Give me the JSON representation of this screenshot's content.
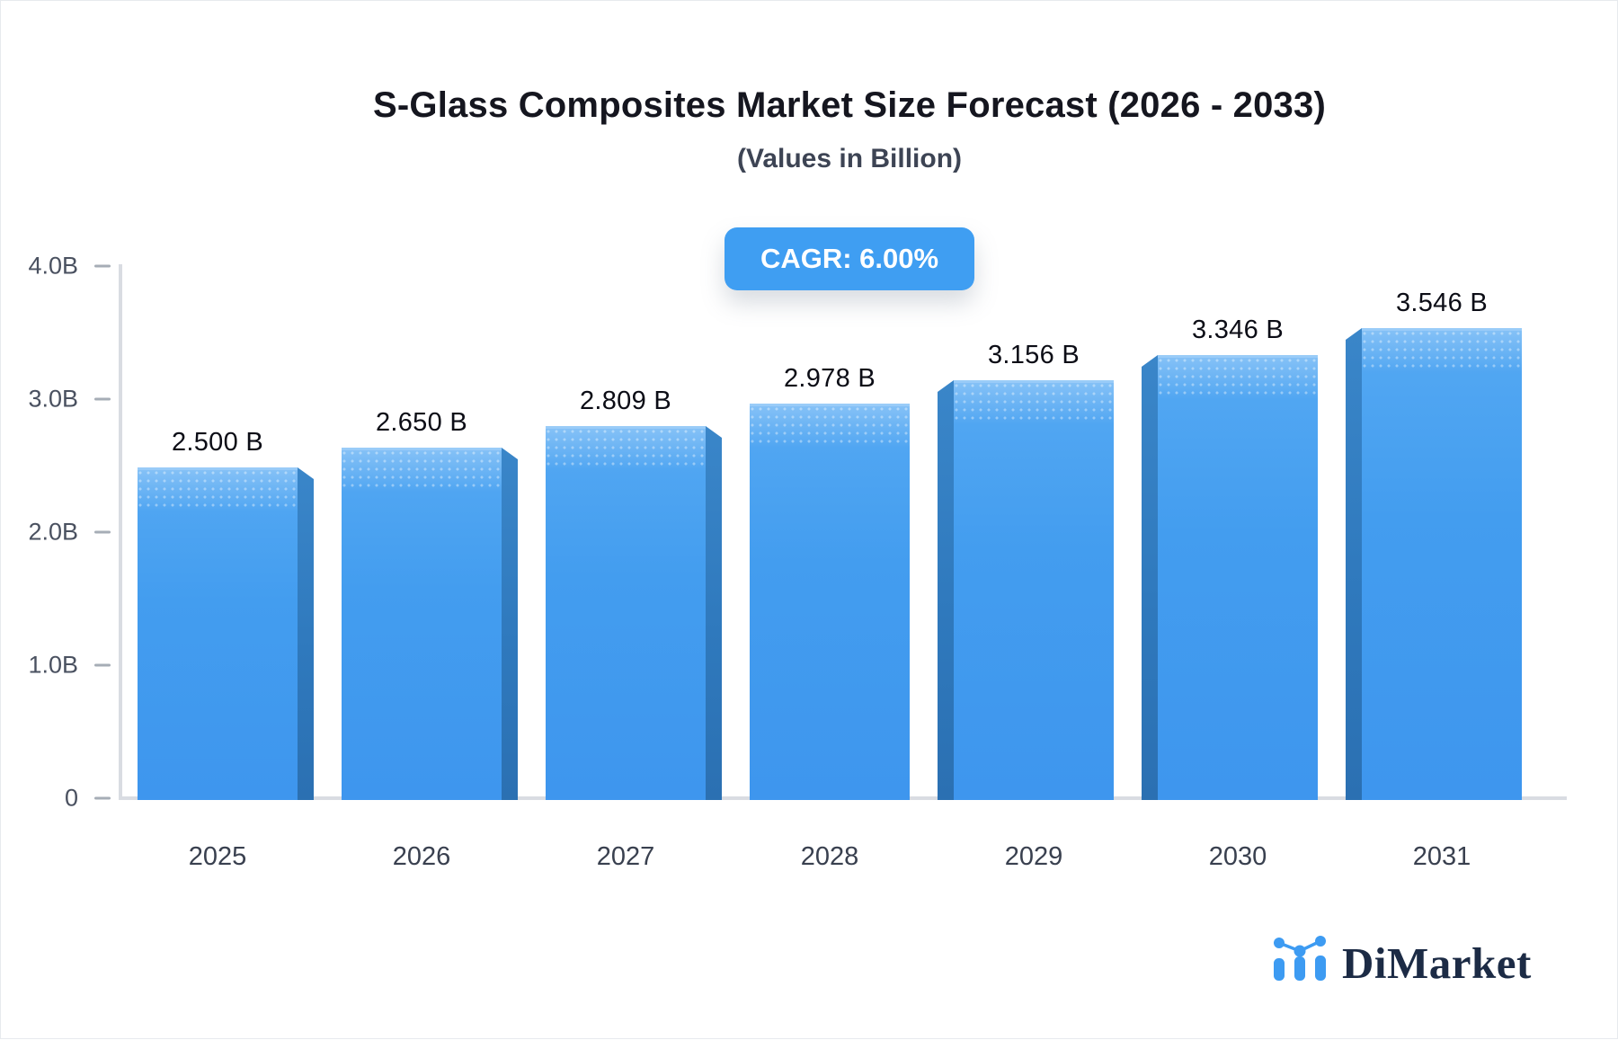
{
  "title": "S-Glass Composites Market Size Forecast (2026 - 2033)",
  "subtitle": "(Values in Billion)",
  "badge": {
    "label": "CAGR: 6.00%"
  },
  "chart_data": {
    "type": "bar",
    "title": "S-Glass Composites Market Size Forecast (2026 - 2033)",
    "subtitle": "(Values in Billion)",
    "annotation": "CAGR: 6.00%",
    "categories": [
      "2025",
      "2026",
      "2027",
      "2028",
      "2029",
      "2030",
      "2031"
    ],
    "values": [
      2.5,
      2.65,
      2.809,
      2.978,
      3.156,
      3.346,
      3.546
    ],
    "value_labels": [
      "2.500 B",
      "2.650 B",
      "2.809 B",
      "2.978 B",
      "3.156 B",
      "3.346 B",
      "3.546 B"
    ],
    "y_ticks": [
      {
        "value": 0,
        "label": "0"
      },
      {
        "value": 1,
        "label": "1.0B"
      },
      {
        "value": 2,
        "label": "2.0B"
      },
      {
        "value": 3,
        "label": "3.0B"
      },
      {
        "value": 4,
        "label": "4.0B"
      }
    ],
    "ylim": [
      0,
      4
    ],
    "xlabel": "",
    "ylabel": "",
    "grid": false,
    "legend_position": "none",
    "bar_color": "#3f9bef",
    "bar_side_color": "#2f79bd",
    "style": "3d-perspective-center"
  },
  "logo": {
    "text": "DiMarket",
    "icon": "bar-line-chart-icon",
    "accent_color": "#3d9bf2",
    "text_color": "#1c2b45"
  }
}
